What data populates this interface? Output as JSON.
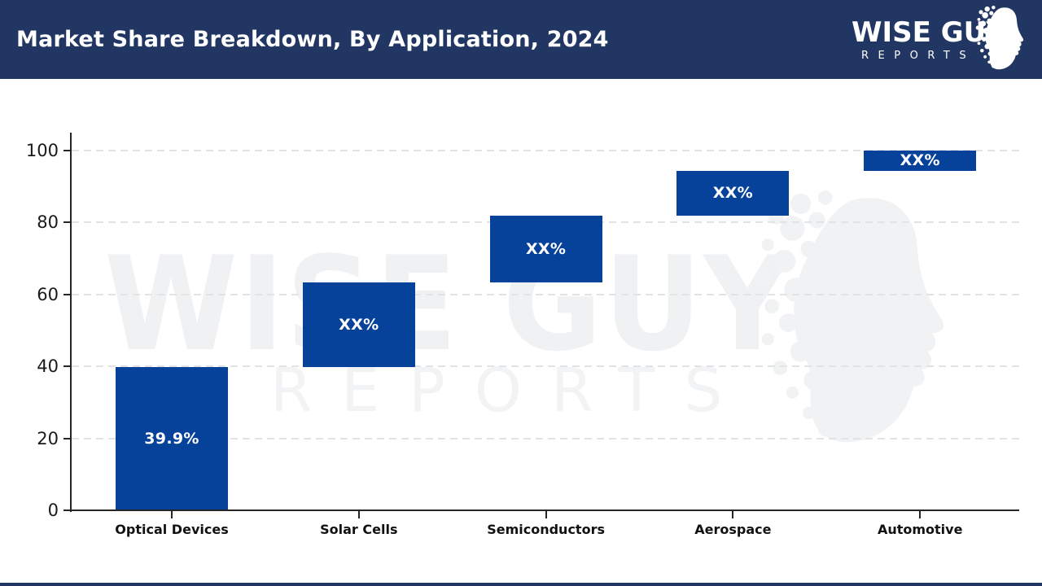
{
  "header": {
    "title": "Market Share Breakdown, By Application, 2024",
    "bg_color": "#213663",
    "logo": {
      "line1": "WISE GUY",
      "line2": "REPORTS"
    }
  },
  "watermark": {
    "line1": "WISE GUY",
    "line2": "REPORTS"
  },
  "footer": {
    "bar_color": "#213663"
  },
  "chart_data": {
    "type": "bar",
    "subtype": "waterfall",
    "title": "Market Share Breakdown, By Application, 2024",
    "categories": [
      "Optical Devices",
      "Solar Cells",
      "Semiconductors",
      "Aerospace",
      "Automotive"
    ],
    "bars": [
      {
        "category": "Optical Devices",
        "from": 0,
        "to": 39.9,
        "label": "39.9%"
      },
      {
        "category": "Solar Cells",
        "from": 39.9,
        "to": 63.3,
        "label": "XX%"
      },
      {
        "category": "Semiconductors",
        "from": 63.3,
        "to": 82.0,
        "label": "XX%"
      },
      {
        "category": "Aerospace",
        "from": 82.0,
        "to": 94.4,
        "label": "XX%"
      },
      {
        "category": "Automotive",
        "from": 94.4,
        "to": 100.0,
        "label": "XX%"
      }
    ],
    "yticks": [
      0,
      20,
      40,
      60,
      80,
      100
    ],
    "ylim": [
      0,
      105
    ],
    "xlabel": "",
    "ylabel": "",
    "grid": "dashed-horizontal",
    "legend": "none",
    "bar_color": "#06429A",
    "value_label_color": "#ffffff",
    "axis_color": "#262626"
  }
}
